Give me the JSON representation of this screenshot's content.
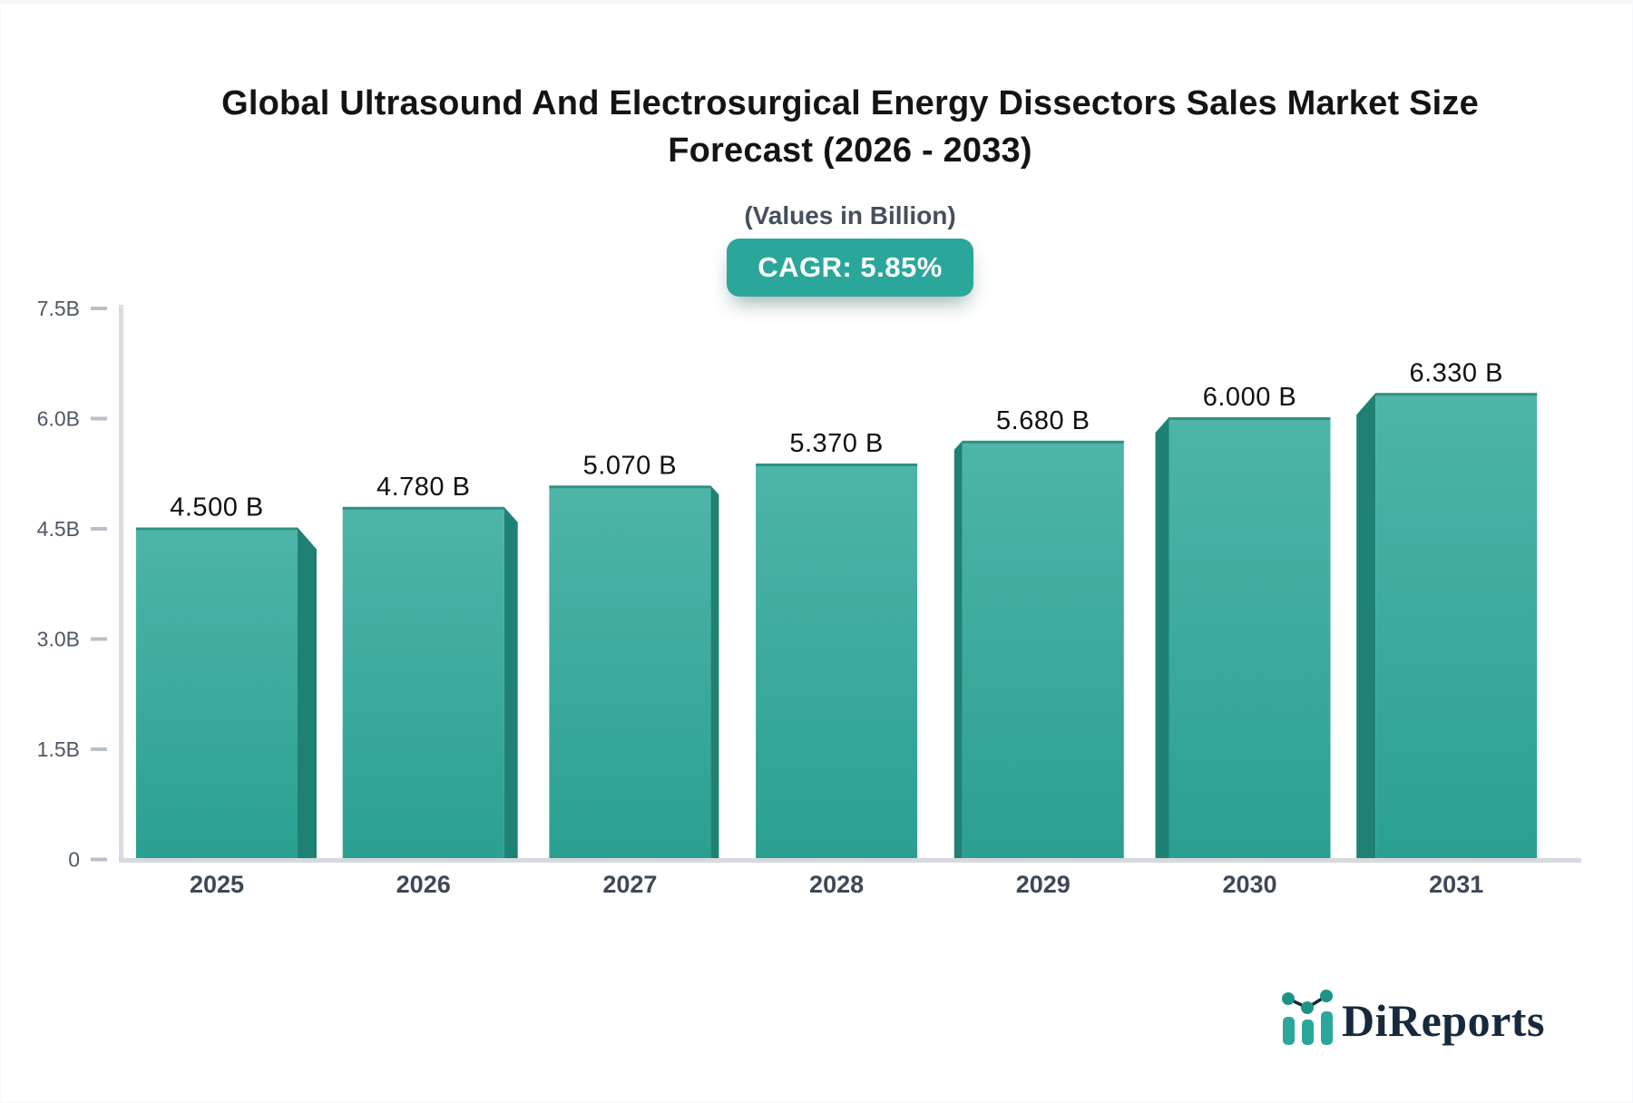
{
  "header": {
    "title_line1": "Global Ultrasound And Electrosurgical Energy Dissectors Sales Market Size",
    "title_line2": "Forecast (2026 - 2033)",
    "subtitle": "(Values in Billion)",
    "cagr_label": "CAGR: 5.85%"
  },
  "chart_data": {
    "type": "bar",
    "title": "Global Ultrasound And Electrosurgical Energy Dissectors Sales Market Size Forecast (2026 - 2033)",
    "subtitle": "(Values in Billion)",
    "cagr_percent": 5.85,
    "unit": "Billion",
    "categories": [
      "2025",
      "2026",
      "2027",
      "2028",
      "2029",
      "2030",
      "2031"
    ],
    "values": [
      4.5,
      4.78,
      5.07,
      5.37,
      5.68,
      6.0,
      6.33
    ],
    "value_labels": [
      "4.500 B",
      "4.780 B",
      "5.070 B",
      "5.370 B",
      "5.680 B",
      "6.000 B",
      "6.330 B"
    ],
    "y_ticks": {
      "labels": [
        "7.5B",
        "6.0B",
        "4.5B",
        "3.0B",
        "1.5B",
        "0"
      ],
      "values": [
        7.5,
        6.0,
        4.5,
        3.0,
        1.5,
        0
      ]
    },
    "ylim": [
      0,
      7.5
    ],
    "grid": false,
    "legend": false,
    "colors": {
      "bar_top": "#4eb5a8",
      "bar_bottom": "#2aa091",
      "bar_side": "#1e8173",
      "bar_edge": "#2c9284",
      "axis_line": "#d9dce1",
      "baseline": "#d6d9de",
      "tick_dash": "#b9bfc8",
      "tick_label": "#4e5765",
      "x_label": "#3e4856",
      "value_label": "#101010",
      "accent": "#2aa79a",
      "navy": "#16293d"
    }
  },
  "branding": {
    "logo_text": "DiReports"
  }
}
